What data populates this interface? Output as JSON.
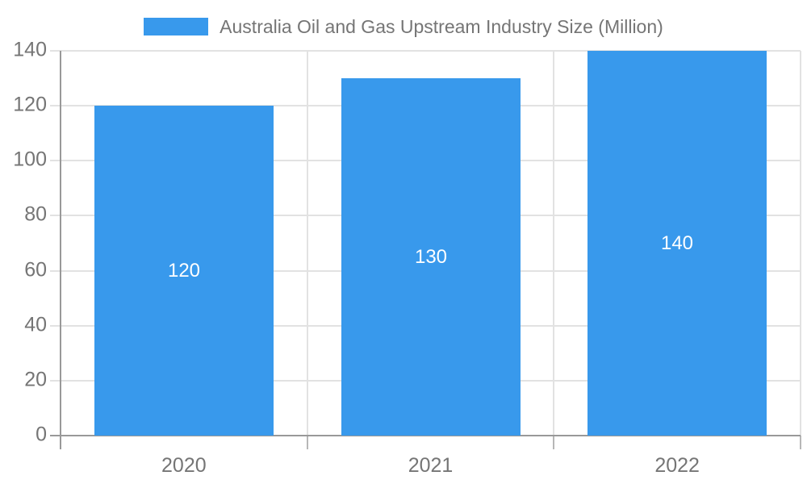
{
  "legend": {
    "items": [
      {
        "label": "Australia Oil and Gas Upstream Industry Size (Million)",
        "swatch_color": "#3899ec"
      }
    ]
  },
  "chart_data": {
    "type": "bar",
    "title": "Australia Oil and Gas Upstream Industry Size (Million)",
    "categories": [
      "2020",
      "2021",
      "2022"
    ],
    "series": [
      {
        "name": "Australia Oil and Gas Upstream Industry Size (Million)",
        "values": [
          120,
          130,
          140
        ],
        "color": "#3899ec"
      }
    ],
    "xlabel": "",
    "ylabel": "",
    "ylim": [
      0,
      140
    ],
    "yticks": [
      0,
      20,
      40,
      60,
      80,
      100,
      120,
      140
    ],
    "grid": true,
    "legend_position": "top",
    "data_labels_shown": true
  },
  "style": {
    "background": "#ffffff",
    "bar_color": "#3899ec",
    "grid_color": "#e2e2e2",
    "axis_color": "#999999",
    "boundary_tick_color": "#b7b7b7",
    "tick_label_color": "#757575",
    "legend_text_color": "#757575",
    "data_label_color": "#ffffff"
  }
}
